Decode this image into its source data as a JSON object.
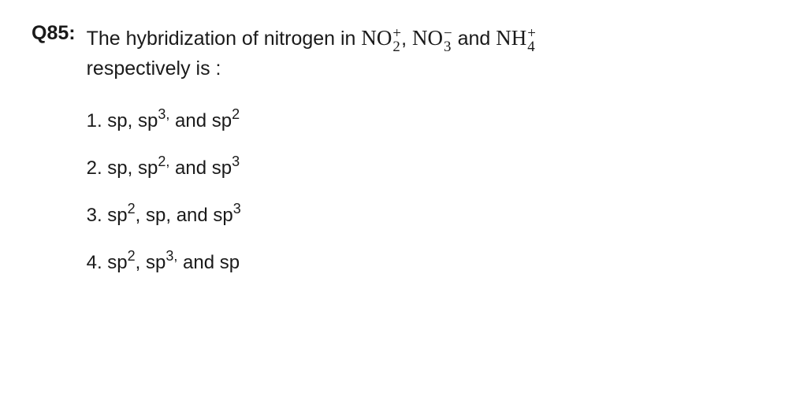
{
  "question": {
    "label": "Q85:",
    "text_prefix": "The hybridization of nitrogen in ",
    "species1_base": "NO",
    "species1_sub": "2",
    "species1_sup": "+",
    "comma1": ", ",
    "species2_base": "NO",
    "species2_sub": "3",
    "species2_sup": "−",
    "and_text": " and ",
    "species3_base": "NH",
    "species3_sub": "4",
    "species3_sup": "+",
    "line2": "respectively is :"
  },
  "options": {
    "opt1_num": "1. ",
    "opt1_a": "sp",
    "opt1_b": "sp",
    "opt1_b_sup": "3,",
    "opt1_and": " and ",
    "opt1_c": "sp",
    "opt1_c_sup": "2",
    "opt2_num": "2. ",
    "opt2_a": "sp",
    "opt2_b": "sp",
    "opt2_b_sup": "2,",
    "opt2_and": " and ",
    "opt2_c": "sp",
    "opt2_c_sup": "3",
    "opt3_num": "3. ",
    "opt3_a": "sp",
    "opt3_a_sup": "2",
    "opt3_comma1": ", ",
    "opt3_b": "sp",
    "opt3_comma2": ", ",
    "opt3_and": "and ",
    "opt3_c": "sp",
    "opt3_c_sup": "3",
    "opt4_num": "4. ",
    "opt4_a": "sp",
    "opt4_a_sup": "2",
    "opt4_comma1": ", ",
    "opt4_b": "sp",
    "opt4_b_sup": "3,",
    "opt4_and": " and ",
    "opt4_c": "sp"
  },
  "style": {
    "background": "#ffffff",
    "text_color": "#1a1a1a",
    "question_fontsize": 25,
    "option_fontsize": 24
  }
}
